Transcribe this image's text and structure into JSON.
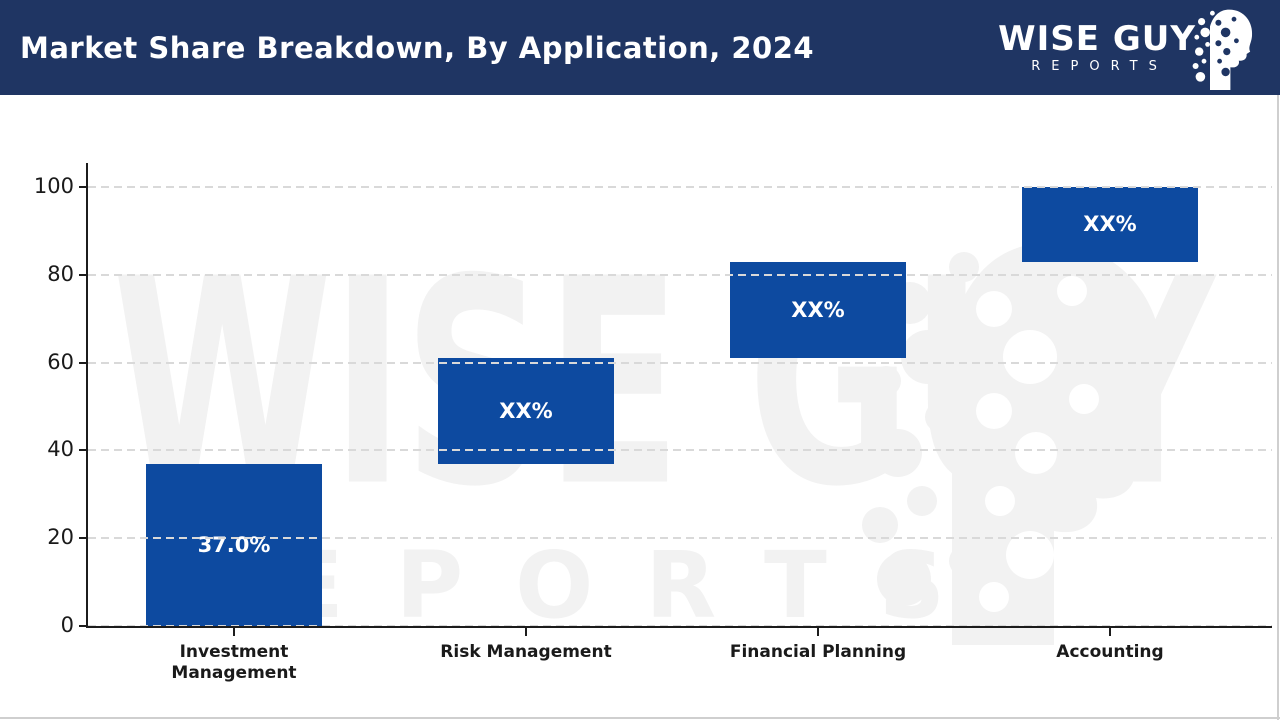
{
  "header": {
    "title": "Market Share Breakdown, By Application, 2024",
    "logo": {
      "line1": "WISE GUY",
      "line2": "REPORTS"
    }
  },
  "watermark": {
    "line1": "WISE GUY",
    "line2": "REPORTS"
  },
  "chart_data": {
    "type": "bar",
    "subtype": "waterfall",
    "title": "Market Share Breakdown, By Application, 2024",
    "xlabel": "",
    "ylabel": "",
    "ylim": [
      0,
      100
    ],
    "y_ticks": [
      0,
      20,
      40,
      60,
      80,
      100
    ],
    "grid": "horizontal-dashed",
    "legend": "none",
    "categories": [
      "Investment\nManagement",
      "Risk Management",
      "Financial Planning",
      "Accounting"
    ],
    "segments": [
      {
        "category": "Investment Management",
        "start": 0,
        "end": 37,
        "value_label": "37.0%"
      },
      {
        "category": "Risk Management",
        "start": 37,
        "end": 61,
        "value_label": "XX%"
      },
      {
        "category": "Financial Planning",
        "start": 61,
        "end": 83,
        "value_label": "XX%"
      },
      {
        "category": "Accounting",
        "start": 83,
        "end": 100,
        "value_label": "XX%"
      }
    ]
  },
  "colors": {
    "header_bg": "#1f3563",
    "bar": "#0d4aa0",
    "bar_label": "#ffffff",
    "grid": "#d9d9d9",
    "axis": "#1c1c1c",
    "watermark": "#f2f2f2"
  }
}
